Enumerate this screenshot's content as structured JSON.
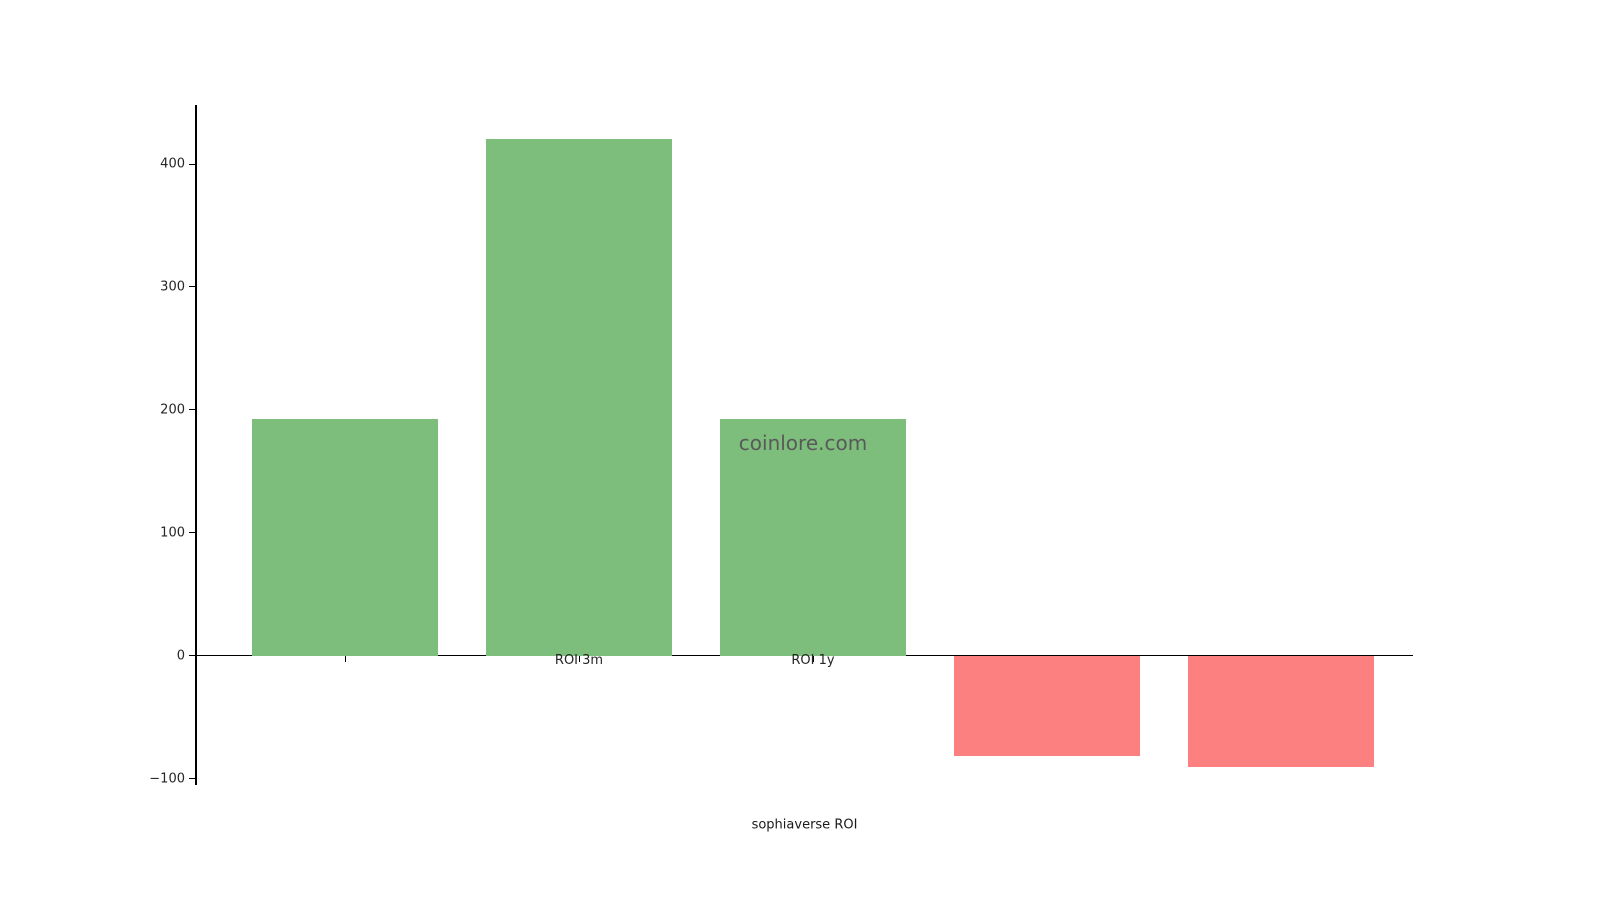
{
  "page": {
    "background_color": "#ffffff"
  },
  "chart_data": {
    "type": "bar",
    "title": "",
    "xlabel": "sophiaverse ROI",
    "ylabel": "",
    "watermark": "coinlore.com",
    "categories": [
      "",
      "ROI 3m",
      "ROI 1y",
      "",
      ""
    ],
    "values": [
      193,
      420,
      193,
      -81,
      -90
    ],
    "positive_color": "#7dbe7d",
    "negative_color": "#fd8080",
    "axis_color": "#000000",
    "tick_text_color": "#262626",
    "watermark_color": "#595959",
    "ylim": [
      -105,
      448
    ],
    "yticks": [
      400,
      300,
      200,
      100,
      0,
      -100
    ],
    "xtick_indices": [
      0,
      1,
      2
    ],
    "grid": false,
    "legend": false
  }
}
